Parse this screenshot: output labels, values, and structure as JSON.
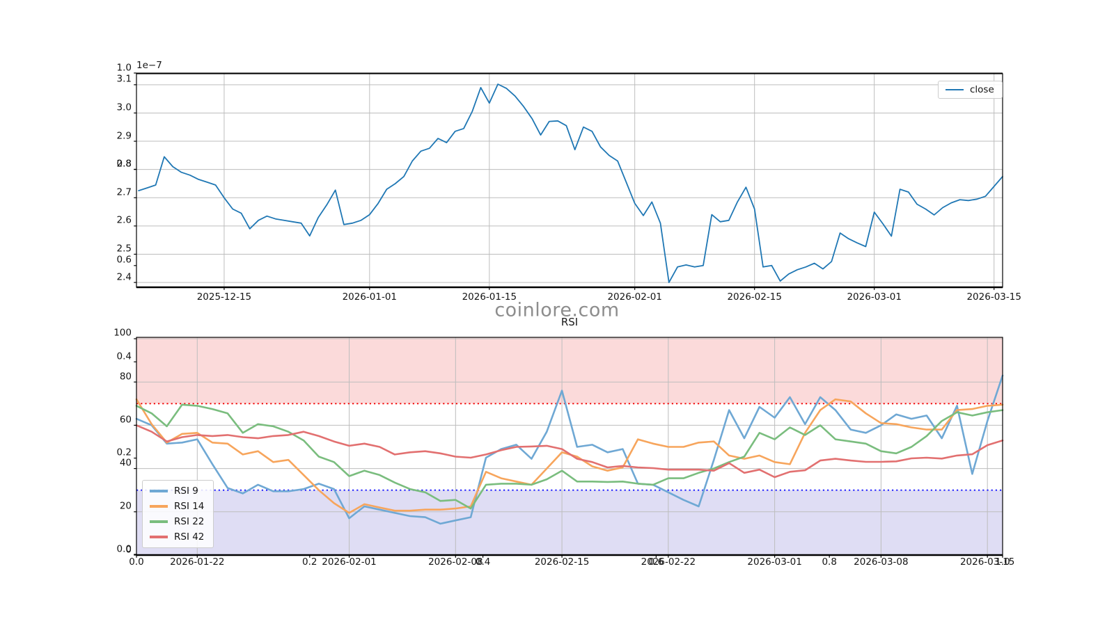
{
  "watermark": "coinlore.com",
  "ghost_axis": {
    "x_tick_labels": [
      "0.0",
      "0.2",
      "0.4",
      "0.6",
      "0.8",
      "1.0"
    ],
    "y_tick_labels": [
      "0.0",
      "0.2",
      "0.4",
      "0.6",
      "0.8",
      "1.0"
    ]
  },
  "chart_data": [
    {
      "type": "line",
      "name": "close-price-chart",
      "offset_label": "1e−7",
      "grid": true,
      "legend_position": "upper right",
      "x_start": "2025-12-05",
      "x_frequency": "daily",
      "ylim": [
        2.383,
        3.139
      ],
      "xlim_pad_days": [
        0.25,
        0
      ],
      "y_ticks": [
        {
          "label": "3.1",
          "v": 3.1
        },
        {
          "label": "3.0",
          "v": 3.0
        },
        {
          "label": "2.9",
          "v": 2.9
        },
        {
          "label": "2.8",
          "v": 2.8
        },
        {
          "label": "2.7",
          "v": 2.7
        },
        {
          "label": "2.6",
          "v": 2.6
        },
        {
          "label": "2.5",
          "v": 2.5
        },
        {
          "label": "2.4",
          "v": 2.4
        }
      ],
      "x_ticks": [
        {
          "label": "2025-12-15",
          "i": 10
        },
        {
          "label": "2026-01-01",
          "i": 27
        },
        {
          "label": "2026-01-15",
          "i": 41
        },
        {
          "label": "2026-02-01",
          "i": 58
        },
        {
          "label": "2026-02-15",
          "i": 72
        },
        {
          "label": "2026-03-01",
          "i": 86
        },
        {
          "label": "2026-03-15",
          "i": 100
        }
      ],
      "series": [
        {
          "name": "close",
          "color": "#1f77b4",
          "width": 1.8,
          "values": [
            2.725,
            2.735,
            2.745,
            2.845,
            2.81,
            2.79,
            2.78,
            2.765,
            2.755,
            2.745,
            2.7,
            2.66,
            2.645,
            2.59,
            2.62,
            2.635,
            2.625,
            2.62,
            2.615,
            2.61,
            2.565,
            2.63,
            2.675,
            2.727,
            2.605,
            2.61,
            2.62,
            2.64,
            2.68,
            2.73,
            2.75,
            2.775,
            2.83,
            2.865,
            2.875,
            2.91,
            2.895,
            2.935,
            2.945,
            3.005,
            3.09,
            3.035,
            3.102,
            3.087,
            3.06,
            3.023,
            2.98,
            2.922,
            2.97,
            2.972,
            2.955,
            2.87,
            2.95,
            2.935,
            2.88,
            2.85,
            2.83,
            2.755,
            2.68,
            2.637,
            2.685,
            2.61,
            2.4,
            2.455,
            2.462,
            2.455,
            2.46,
            2.64,
            2.615,
            2.62,
            2.685,
            2.737,
            2.66,
            2.455,
            2.46,
            2.405,
            2.43,
            2.445,
            2.455,
            2.468,
            2.448,
            2.474,
            2.575,
            2.555,
            2.54,
            2.527,
            2.649,
            2.608,
            2.564,
            2.73,
            2.72,
            2.677,
            2.66,
            2.639,
            2.665,
            2.682,
            2.693,
            2.69,
            2.695,
            2.705,
            2.74,
            2.775
          ]
        }
      ]
    },
    {
      "type": "line",
      "name": "rsi-chart",
      "title": "RSI",
      "grid": true,
      "legend_position": "lower left",
      "x_start": "2026-01-18",
      "x_frequency": "daily",
      "ylim": [
        0,
        100.64
      ],
      "xlim_pad_days": [
        0,
        0
      ],
      "y_ticks": [
        {
          "label": "100",
          "v": 100
        },
        {
          "label": "80",
          "v": 80
        },
        {
          "label": "60",
          "v": 60
        },
        {
          "label": "40",
          "v": 40
        },
        {
          "label": "20",
          "v": 20
        },
        {
          "label": "0",
          "v": 0
        }
      ],
      "x_ticks": [
        {
          "label": "2026-01-22",
          "i": 4
        },
        {
          "label": "2026-02-01",
          "i": 14
        },
        {
          "label": "2026-02-08",
          "i": 21
        },
        {
          "label": "2026-02-15",
          "i": 28
        },
        {
          "label": "2026-02-22",
          "i": 35
        },
        {
          "label": "2026-03-01",
          "i": 42
        },
        {
          "label": "2026-03-08",
          "i": 49
        },
        {
          "label": "2026-03-15",
          "i": 56
        }
      ],
      "bands": [
        {
          "from": 70,
          "to": 100.64,
          "color": "#fbdada",
          "meaning": "overbought"
        },
        {
          "from": 0,
          "to": 30,
          "color": "#dfddf4",
          "meaning": "oversold"
        }
      ],
      "hlines": [
        {
          "v": 70,
          "color": "#f20000",
          "style": "dotted"
        },
        {
          "v": 30,
          "color": "#1414ff",
          "style": "dotted"
        }
      ],
      "series": [
        {
          "name": "RSI 9",
          "color": "#6fa8d4",
          "width": 2.6,
          "values": [
            63,
            60,
            51.5,
            52,
            53.5,
            42,
            31,
            28.5,
            32.5,
            29.5,
            29.5,
            30.5,
            33,
            30.5,
            17,
            22.5,
            21,
            19.5,
            18,
            17.5,
            14.5,
            16,
            17.5,
            45,
            49,
            51,
            44.5,
            57,
            76,
            50,
            51,
            47.5,
            49,
            33,
            32.5,
            29,
            25.5,
            22.5,
            44,
            67,
            54,
            68.5,
            63.5,
            73,
            60.5,
            73,
            67,
            58,
            56.5,
            60,
            65,
            63,
            64.5,
            54,
            69,
            37.5,
            62,
            83
          ]
        },
        {
          "name": "RSI 14",
          "color": "#f7a55c",
          "width": 2.6,
          "values": [
            72,
            60.5,
            52,
            56,
            56.5,
            52,
            51.5,
            46.5,
            48,
            43,
            44,
            37,
            30,
            24,
            19.5,
            23.5,
            22,
            20.5,
            20.5,
            21,
            21,
            21.5,
            22.5,
            38.5,
            35.5,
            34,
            32.5,
            40,
            47.5,
            45.5,
            41,
            39,
            40.5,
            53.5,
            51.5,
            50,
            50,
            52,
            52.5,
            46,
            44.5,
            46,
            43,
            42,
            56.5,
            67,
            72,
            71,
            65.5,
            61,
            60.5,
            59,
            58,
            58,
            67,
            67.5,
            69,
            69.5
          ]
        },
        {
          "name": "RSI 22",
          "color": "#7abd7e",
          "width": 2.6,
          "values": [
            69,
            65.5,
            59.5,
            69.5,
            69,
            67.5,
            65.5,
            56.5,
            60.5,
            59.5,
            57,
            53,
            45.5,
            43,
            36.5,
            39,
            37,
            33.5,
            30.5,
            29,
            25,
            25.5,
            21.5,
            32.5,
            33,
            33,
            32.5,
            35,
            39,
            34,
            34,
            33.8,
            34,
            33,
            32.5,
            35.5,
            35.5,
            38,
            40,
            43,
            45.5,
            56.5,
            53.5,
            59,
            55.5,
            60,
            53.5,
            52.5,
            51.5,
            48,
            47,
            50,
            55,
            62,
            66,
            64.5,
            66,
            67
          ]
        },
        {
          "name": "RSI 42",
          "color": "#e27070",
          "width": 2.6,
          "values": [
            60,
            57,
            52.5,
            54.5,
            55.5,
            55,
            55.5,
            54.5,
            54,
            55,
            55.5,
            57,
            55,
            52.5,
            50.5,
            51.5,
            50,
            46.5,
            47.5,
            48,
            47,
            45.5,
            45,
            46.5,
            48.5,
            50,
            50.2,
            50.5,
            49,
            44.5,
            43,
            40.5,
            41.2,
            40.5,
            40.2,
            39.5,
            39.5,
            39.5,
            39,
            42.5,
            38,
            39.5,
            36,
            38.5,
            39.2,
            43.7,
            44.5,
            43.7,
            43.1,
            43.1,
            43.3,
            44.7,
            45,
            44.6,
            46,
            46.6,
            50.8,
            53
          ]
        }
      ]
    }
  ]
}
